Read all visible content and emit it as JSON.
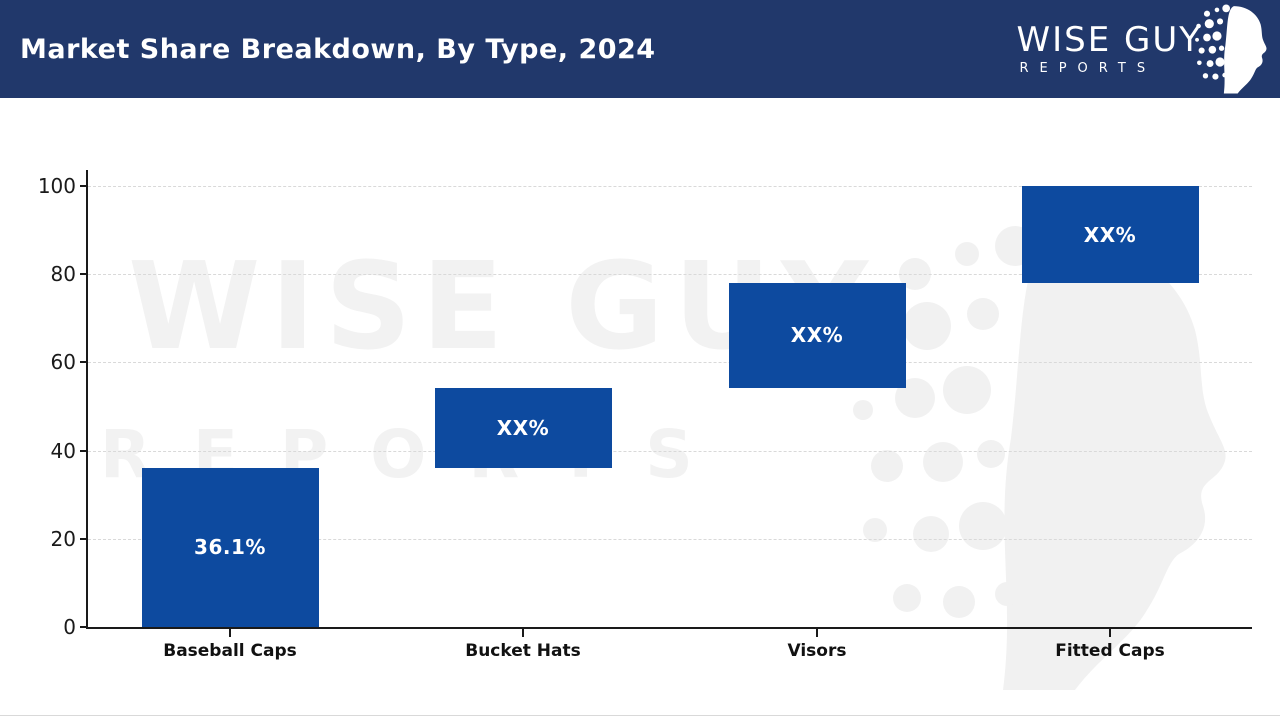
{
  "header": {
    "title": "Market Share Breakdown, By Type, 2024",
    "background_color": "#21386b",
    "brand": {
      "name": "WISE GUY",
      "sub": "REPORTS"
    }
  },
  "watermark": {
    "line1": "WISE GUY",
    "line2": "REPORTS"
  },
  "chart_data": {
    "type": "bar",
    "subtype": "waterfall",
    "title": "Market Share Breakdown, By Type, 2024",
    "categories": [
      "Baseball Caps",
      "Bucket Hats",
      "Visors",
      "Fitted Caps"
    ],
    "segments": [
      {
        "category": "Baseball Caps",
        "start": 0,
        "end": 36.1,
        "label": "36.1%"
      },
      {
        "category": "Bucket Hats",
        "start": 36.1,
        "end": 54.2,
        "label": "XX%"
      },
      {
        "category": "Visors",
        "start": 54.2,
        "end": 78.0,
        "label": "XX%"
      },
      {
        "category": "Fitted Caps",
        "start": 78.0,
        "end": 100.0,
        "label": "XX%"
      }
    ],
    "yticks": [
      0,
      20,
      40,
      60,
      80,
      100
    ],
    "ylim": [
      0,
      100
    ],
    "xlabel": "",
    "ylabel": "",
    "bar_color": "#0d4a9f",
    "value_label_color": "#ffffff",
    "grid": "horizontal-dashed",
    "legend": "none"
  }
}
